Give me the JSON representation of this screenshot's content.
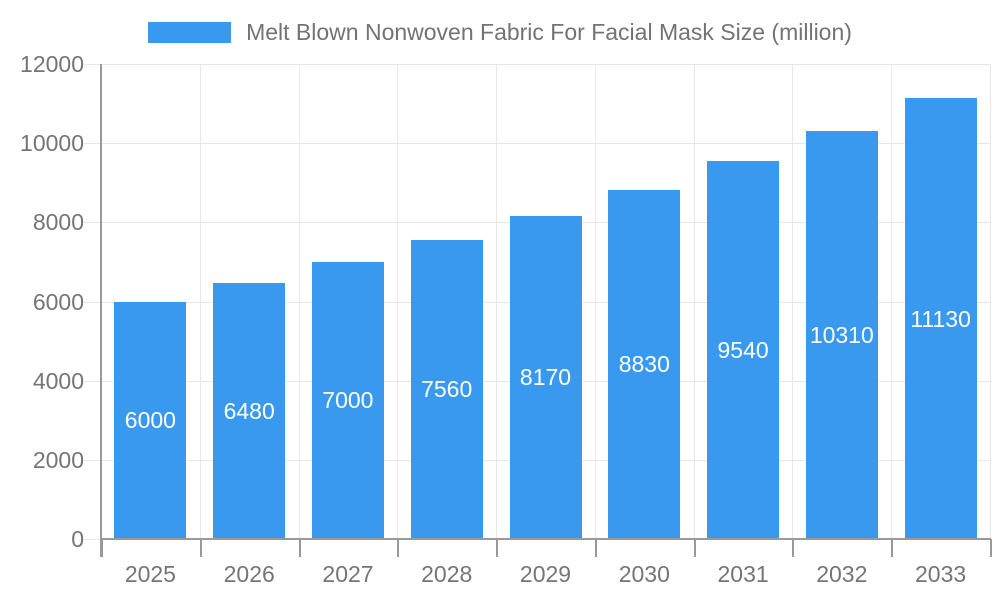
{
  "chart_data": {
    "type": "bar",
    "legend": "Melt Blown Nonwoven Fabric For Facial Mask Size (million)",
    "categories": [
      "2025",
      "2026",
      "2027",
      "2028",
      "2029",
      "2030",
      "2031",
      "2032",
      "2033"
    ],
    "values": [
      6000,
      6480,
      7000,
      7560,
      8170,
      8830,
      9540,
      10310,
      11130
    ],
    "title": "",
    "xlabel": "",
    "ylabel": "",
    "ylim": [
      0,
      12000
    ],
    "yticks": [
      0,
      2000,
      4000,
      6000,
      8000,
      10000,
      12000
    ],
    "grid": true,
    "legend_position": "top-center",
    "value_label_position": "inside-center",
    "colors": {
      "bar": "#3999EF",
      "grid": "#E7E7E7",
      "axis": "#999999",
      "tick_label": "#757575",
      "legend_text": "#737373",
      "value_label": "#FFFFFF",
      "background": "#FFFFFF"
    }
  }
}
